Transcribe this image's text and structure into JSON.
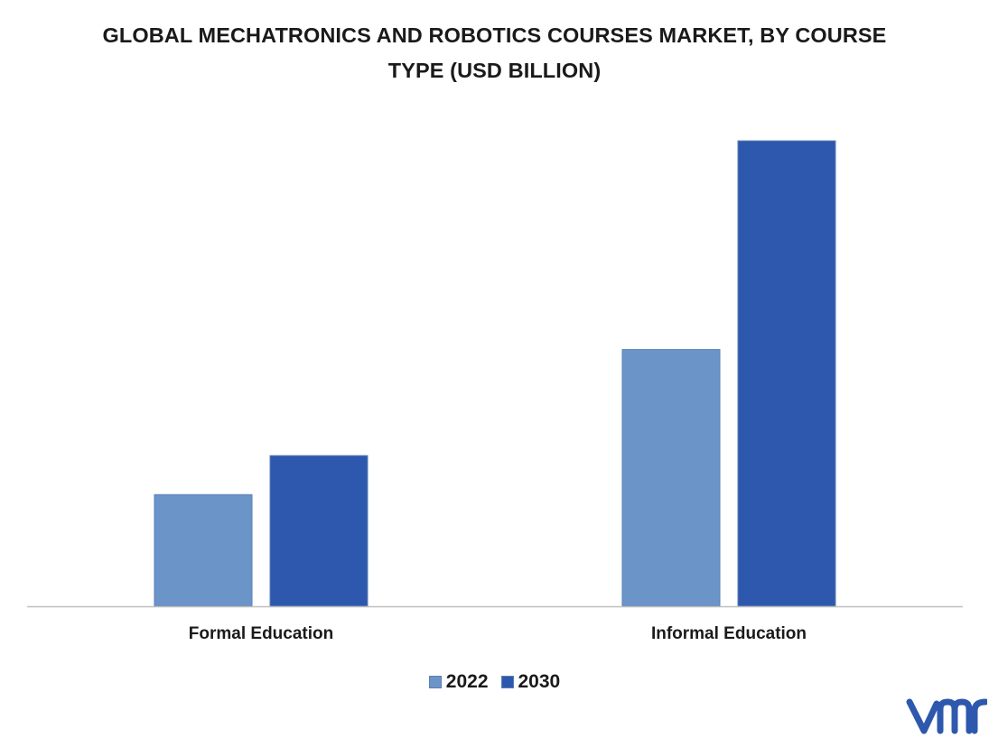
{
  "chart_data": {
    "type": "bar",
    "title": "GLOBAL MECHATRONICS AND ROBOTICS COURSES MARKET, BY COURSE TYPE (USD BILLION)",
    "categories": [
      "Formal Education",
      "Informal Education"
    ],
    "series": [
      {
        "name": "2022",
        "values": [
          1.0,
          2.3
        ],
        "color": "#6b94c8"
      },
      {
        "name": "2030",
        "values": [
          1.35,
          4.17
        ],
        "color": "#2e58ad"
      }
    ],
    "ylim": [
      0,
      4.3
    ],
    "grid": false,
    "legend_position": "bottom-center"
  },
  "logo": {
    "icon": "vmr-logo-icon",
    "color": "#2e58ad"
  }
}
